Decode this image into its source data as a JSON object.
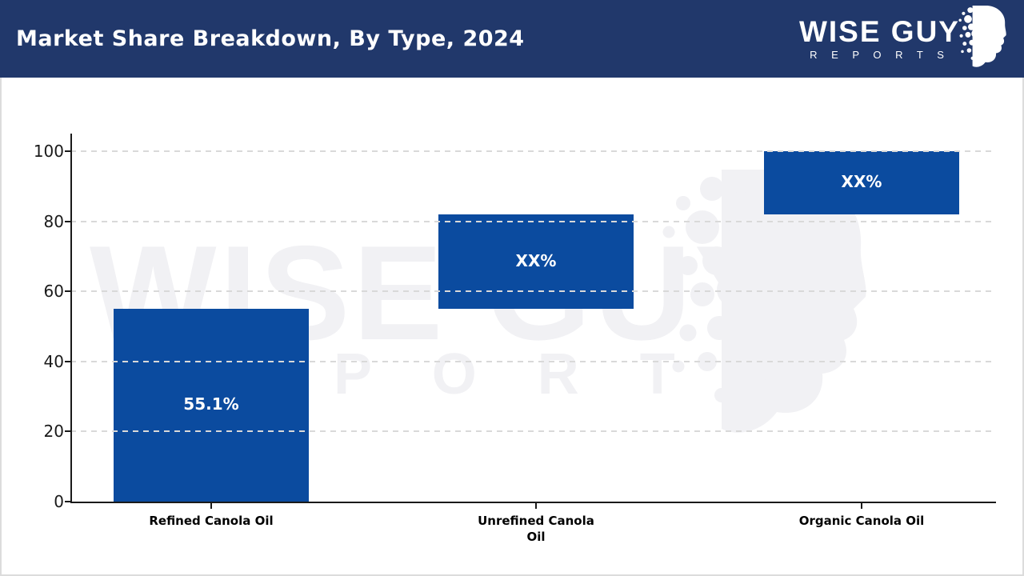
{
  "header": {
    "title": "Market Share Breakdown, By Type, 2024",
    "bg_color": "#21386B",
    "logo": {
      "wordmark": "WISE GUY",
      "subtext": "R E P O R T S"
    }
  },
  "watermark": {
    "wordmark": "WISE GUY",
    "subtext": "R E P O R T S"
  },
  "chart_data": {
    "type": "bar",
    "variant": "stacked-waterfall",
    "title": "Market Share Breakdown, By Type, 2024",
    "categories": [
      "Refined Canola Oil",
      "Unrefined Canola\nOil",
      "Organic Canola Oil"
    ],
    "segments": [
      {
        "category": "Refined Canola Oil",
        "start": 0,
        "end": 55.1,
        "label": "55.1%"
      },
      {
        "category": "Unrefined Canola Oil",
        "start": 55.1,
        "end": 82,
        "label": "XX%"
      },
      {
        "category": "Organic Canola Oil",
        "start": 82,
        "end": 100,
        "label": "XX%"
      }
    ],
    "bar_labels": [
      "55.1%",
      "XX%",
      "XX%"
    ],
    "y_ticks": [
      0,
      20,
      40,
      60,
      80,
      100
    ],
    "ylim": [
      0,
      105
    ],
    "xlabel": "",
    "ylabel": "",
    "grid": "horizontal-dashed",
    "legend": "none",
    "bar_color": "#0B4B9F",
    "grid_color": "#D9D9D9",
    "axis_color": "#1A1A1A",
    "value_label_color": "#FFFFFF"
  }
}
